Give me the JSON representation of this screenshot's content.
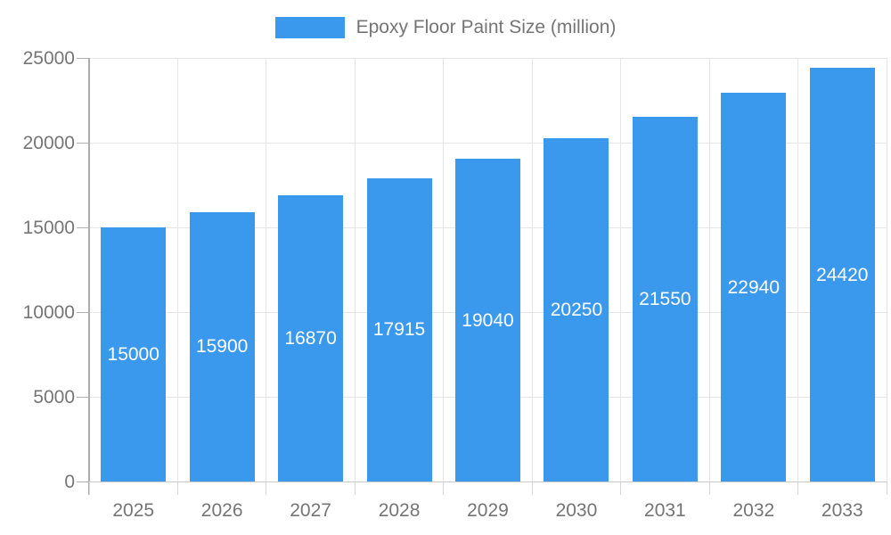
{
  "legend": {
    "label": "Epoxy Floor Paint Size (million)",
    "swatch_color": "#3b99ed"
  },
  "chart_data": {
    "type": "bar",
    "title": "Epoxy Floor Paint Size (million)",
    "categories": [
      "2025",
      "2026",
      "2027",
      "2028",
      "2029",
      "2030",
      "2031",
      "2032",
      "2033"
    ],
    "values": [
      15000,
      15900,
      16870,
      17915,
      19040,
      20250,
      21550,
      22940,
      24420
    ],
    "xlabel": "",
    "ylabel": "",
    "ylim": [
      0,
      25000
    ],
    "y_ticks": [
      0,
      5000,
      10000,
      15000,
      20000,
      25000
    ],
    "grid": true,
    "legend_position": "top-center",
    "bar_color": "#3b99ed",
    "bar_label_color": "#ffffff",
    "axis_text_color": "#757575",
    "gridline_color": "#e6e6e6",
    "axis_line_color": "#ababab"
  }
}
